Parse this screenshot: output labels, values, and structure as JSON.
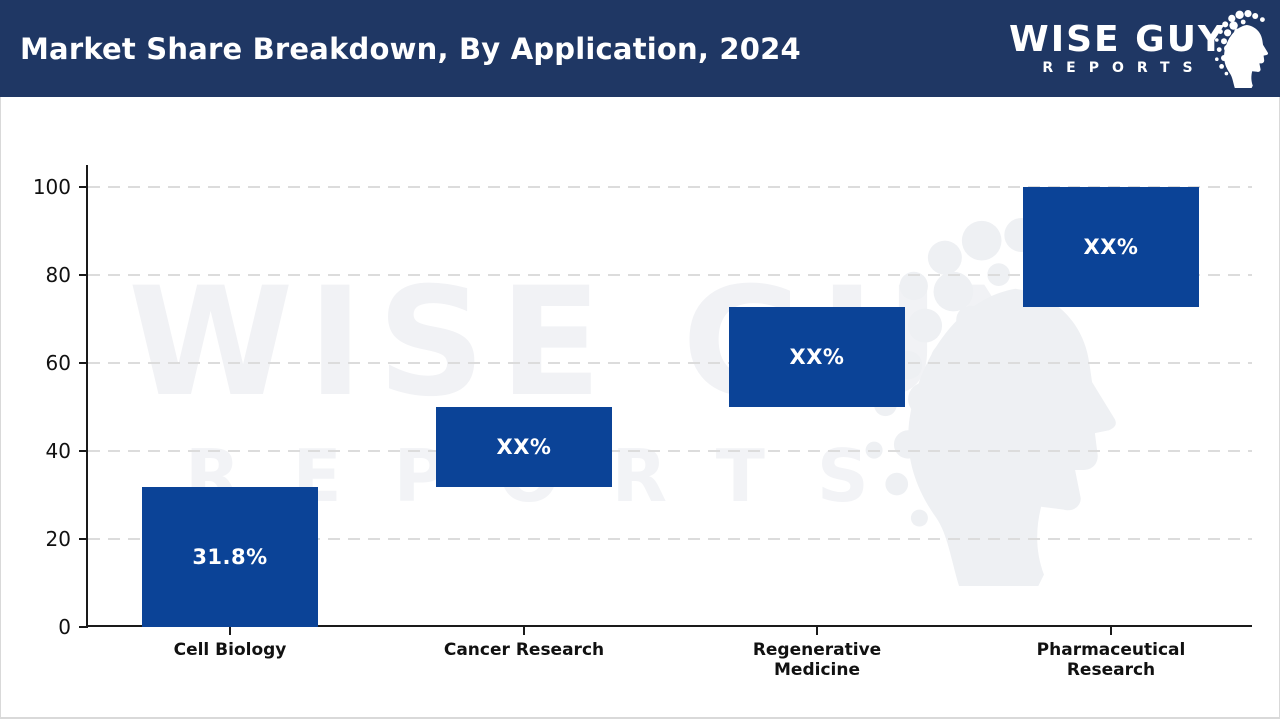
{
  "header": {
    "title": "Market Share Breakdown, By Application, 2024",
    "logo": {
      "wordmark": "WISE GUY",
      "subtext": "REPORTS"
    }
  },
  "watermark": {
    "wordmark": "WISE GUY",
    "subtext": "REPORTS"
  },
  "colors": {
    "header_bg": "#1f3764",
    "header_text": "#ffffff",
    "bar_fill": "#0b4397",
    "bar_label": "#ffffff",
    "axis": "#1a1a1a",
    "grid": "#dcdcdc",
    "tick_label": "#111111",
    "category_label": "#111111",
    "watermark_text": "#f1f2f5",
    "watermark_head": "#eef0f3",
    "frame_border": "#d9d9d9"
  },
  "chart_data": {
    "type": "bar",
    "subtype": "waterfall",
    "title": "Market Share Breakdown, By Application, 2024",
    "ylim": [
      0,
      100
    ],
    "yticks": [
      0,
      20,
      40,
      60,
      80,
      100
    ],
    "grid": "horizontal-dashed",
    "legend": "none",
    "categories": [
      {
        "label": "Cell Biology",
        "lines": [
          "Cell Biology"
        ]
      },
      {
        "label": "Cancer Research",
        "lines": [
          "Cancer Research"
        ]
      },
      {
        "label": "Regenerative Medicine",
        "lines": [
          "Regenerative",
          "Medicine"
        ]
      },
      {
        "label": "Pharmaceutical Research",
        "lines": [
          "Pharmaceutical",
          "Research"
        ]
      }
    ],
    "series": [
      {
        "segments": [
          {
            "category": "Cell Biology",
            "start": 0,
            "end": 31.8,
            "label": "31.8%"
          },
          {
            "category": "Cancer Research",
            "start": 31.8,
            "end": 50,
            "label": "XX%"
          },
          {
            "category": "Regenerative Medicine",
            "start": 50,
            "end": 72.7,
            "label": "XX%"
          },
          {
            "category": "Pharmaceutical Research",
            "start": 72.7,
            "end": 100,
            "label": "XX%"
          }
        ]
      }
    ]
  }
}
